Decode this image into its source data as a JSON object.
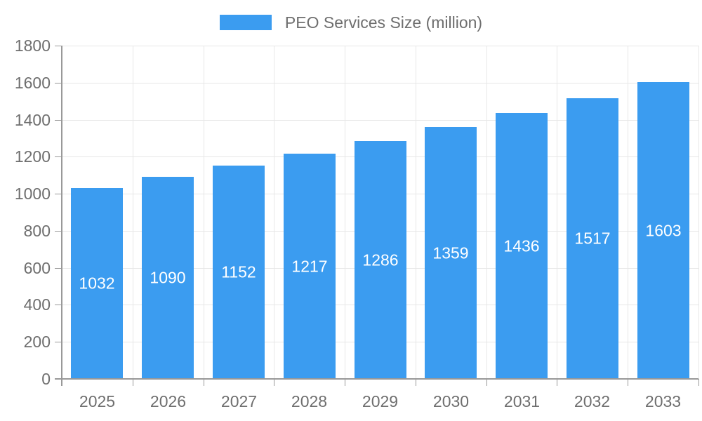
{
  "chart_data": {
    "type": "bar",
    "title": "PEO Services Size (million)",
    "categories": [
      "2025",
      "2026",
      "2027",
      "2028",
      "2029",
      "2030",
      "2031",
      "2032",
      "2033"
    ],
    "values": [
      1032,
      1090,
      1152,
      1217,
      1286,
      1359,
      1436,
      1517,
      1603
    ],
    "xlabel": "",
    "ylabel": "",
    "ylim": [
      0,
      1800
    ],
    "ytick_step": 200,
    "ytick_labels": [
      "0",
      "200",
      "400",
      "600",
      "800",
      "1000",
      "1200",
      "1400",
      "1600",
      "1800"
    ],
    "grid": true,
    "legend_position": "top",
    "value_labels_shown": true,
    "value_label_position": "center-of-bar"
  },
  "colors": {
    "bar": "#3b9cf0",
    "axis": "#999999",
    "gridline": "#e7e7e7",
    "tick_text": "#6e6e6e",
    "legend_text": "#6e6e6e",
    "value_label": "#ffffff",
    "background": "#ffffff"
  }
}
